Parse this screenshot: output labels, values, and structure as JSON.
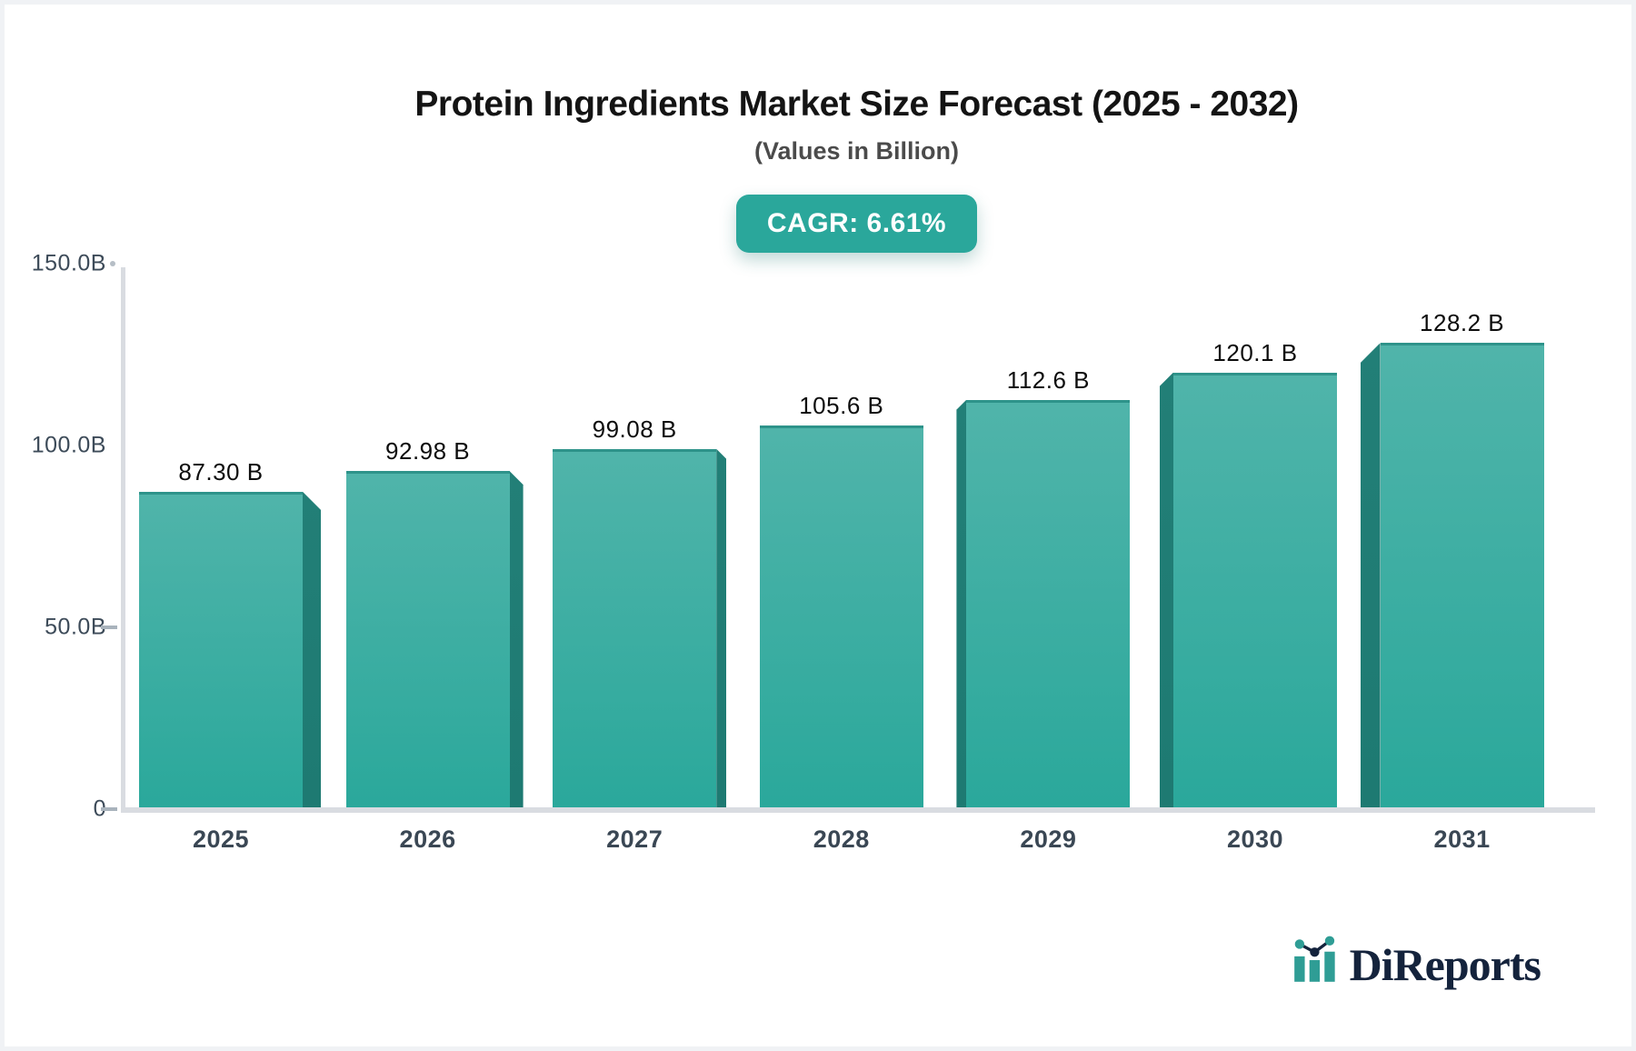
{
  "header": {
    "title": "Protein Ingredients Market Size Forecast (2025 - 2032)",
    "subtitle": "(Values in Billion)",
    "cagr_label": "CAGR: 6.61%"
  },
  "chart_data": {
    "type": "bar",
    "title": "Protein Ingredients Market Size Forecast (2025 - 2032)",
    "subtitle": "(Values in Billion)",
    "cagr": "6.61%",
    "categories": [
      "2025",
      "2026",
      "2027",
      "2028",
      "2029",
      "2030",
      "2031"
    ],
    "values": [
      87.3,
      92.98,
      99.08,
      105.6,
      112.6,
      120.1,
      128.2
    ],
    "value_labels": [
      "87.30 B",
      "92.98 B",
      "99.08 B",
      "105.6 B",
      "112.6 B",
      "120.1 B",
      "128.2 B"
    ],
    "unit": "Billion",
    "ylim": [
      0,
      150
    ],
    "y_ticks": [
      {
        "label": "150.0B",
        "value": 150,
        "marker": "dot"
      },
      {
        "label": "100.0B",
        "value": 100,
        "marker": "none"
      },
      {
        "label": "50.0B",
        "value": 50,
        "marker": "dash"
      },
      {
        "label": "0",
        "value": 0,
        "marker": "dash"
      }
    ],
    "grid": false,
    "legend": "none",
    "style_3d": true
  },
  "colors": {
    "badge_bg": "#2aa79b",
    "bar_top": "#50b4aa",
    "bar_bottom": "#2aa89b",
    "bar_side": "#1e7a72",
    "axis": "#d9dce1",
    "title_text": "#141414",
    "subtitle_text": "#4b4b4b",
    "axis_label": "#3d4b59",
    "year_label": "#3a4754",
    "value_label": "#0d0d0d",
    "logo_navy": "#14233c",
    "logo_teal": "#2f9d95"
  },
  "logo": {
    "text": "DiReports",
    "icon": "bar-chart-trend-icon"
  }
}
